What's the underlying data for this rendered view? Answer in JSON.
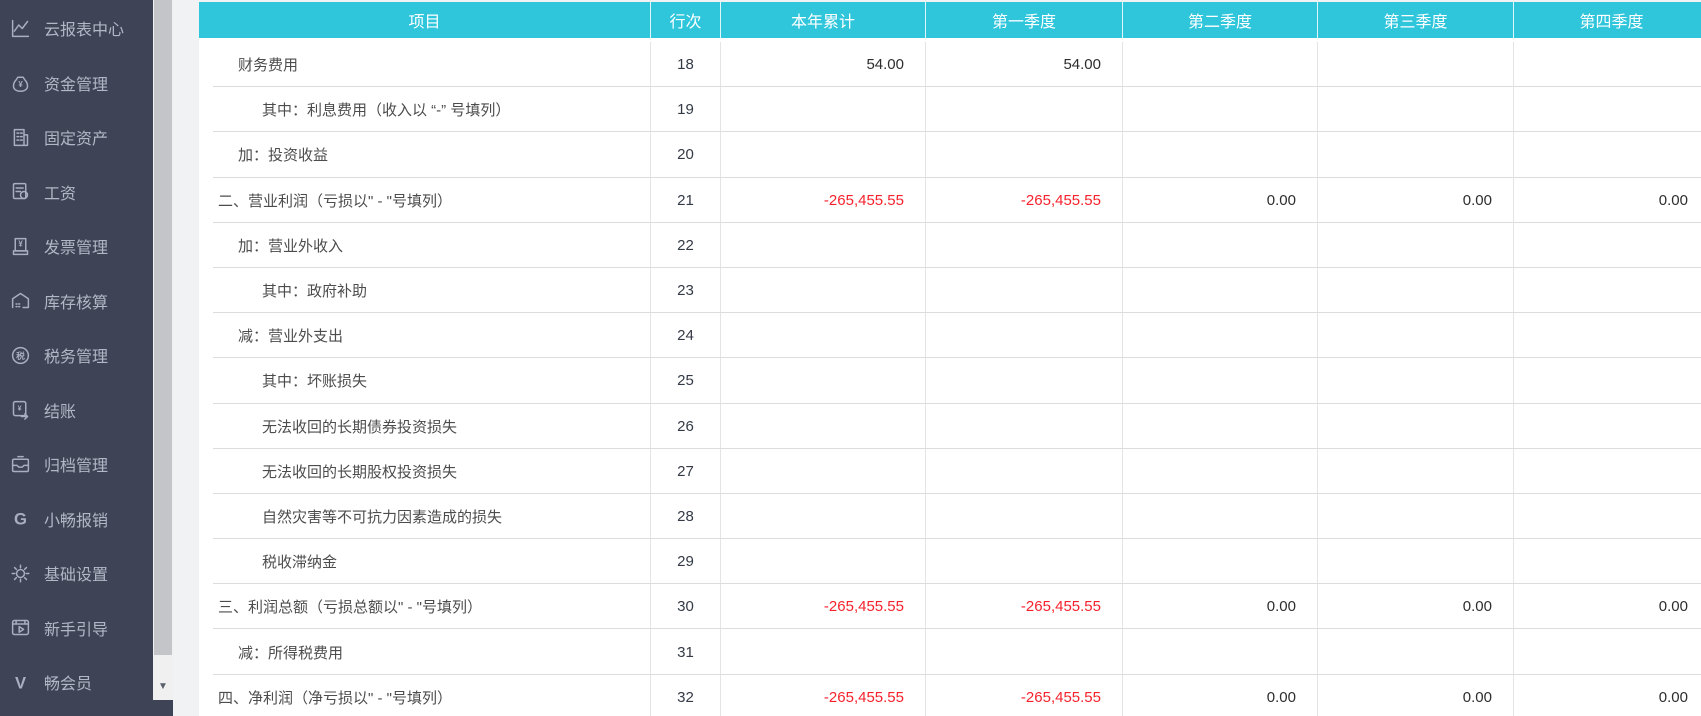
{
  "sidebar": {
    "items": [
      {
        "label": "云报表中心",
        "icon": "chart-line-icon"
      },
      {
        "label": "资金管理",
        "icon": "money-bag-icon"
      },
      {
        "label": "固定资产",
        "icon": "building-icon"
      },
      {
        "label": "工资",
        "icon": "salary-doc-icon"
      },
      {
        "label": "发票管理",
        "icon": "invoice-icon"
      },
      {
        "label": "库存核算",
        "icon": "warehouse-icon"
      },
      {
        "label": "税务管理",
        "icon": "tax-circle-icon"
      },
      {
        "label": "结账",
        "icon": "closing-book-icon"
      },
      {
        "label": "归档管理",
        "icon": "archive-tray-icon"
      },
      {
        "label": "小畅报销",
        "icon": "g-logo-icon"
      },
      {
        "label": "基础设置",
        "icon": "gear-icon"
      },
      {
        "label": "新手引导",
        "icon": "guide-video-icon"
      },
      {
        "label": "畅会员",
        "icon": "member-v-icon"
      }
    ]
  },
  "table": {
    "columns": [
      "项目",
      "行次",
      "本年累计",
      "第一季度",
      "第二季度",
      "第三季度",
      "第四季度"
    ],
    "rows": [
      {
        "item": "财务费用",
        "indent": 1,
        "line": "18",
        "ytd": "54.00",
        "q1": "54.00",
        "q2": "",
        "q3": "",
        "q4": ""
      },
      {
        "item": "其中：利息费用（收入以 “-” 号填列）",
        "indent": 2,
        "line": "19",
        "ytd": "",
        "q1": "",
        "q2": "",
        "q3": "",
        "q4": ""
      },
      {
        "item": "加：投资收益",
        "indent": 1,
        "line": "20",
        "ytd": "",
        "q1": "",
        "q2": "",
        "q3": "",
        "q4": ""
      },
      {
        "item": "二、营业利润（亏损以\" - \"号填列）",
        "indent": 0,
        "line": "21",
        "ytd": "-265,455.55",
        "q1": "-265,455.55",
        "q2": "0.00",
        "q3": "0.00",
        "q4": "0.00"
      },
      {
        "item": "加：营业外收入",
        "indent": 1,
        "line": "22",
        "ytd": "",
        "q1": "",
        "q2": "",
        "q3": "",
        "q4": ""
      },
      {
        "item": "其中：政府补助",
        "indent": 2,
        "line": "23",
        "ytd": "",
        "q1": "",
        "q2": "",
        "q3": "",
        "q4": ""
      },
      {
        "item": "减：营业外支出",
        "indent": 1,
        "line": "24",
        "ytd": "",
        "q1": "",
        "q2": "",
        "q3": "",
        "q4": ""
      },
      {
        "item": "其中：坏账损失",
        "indent": 2,
        "line": "25",
        "ytd": "",
        "q1": "",
        "q2": "",
        "q3": "",
        "q4": ""
      },
      {
        "item": "无法收回的长期债券投资损失",
        "indent": 2,
        "line": "26",
        "ytd": "",
        "q1": "",
        "q2": "",
        "q3": "",
        "q4": ""
      },
      {
        "item": "无法收回的长期股权投资损失",
        "indent": 2,
        "line": "27",
        "ytd": "",
        "q1": "",
        "q2": "",
        "q3": "",
        "q4": ""
      },
      {
        "item": "自然灾害等不可抗力因素造成的损失",
        "indent": 2,
        "line": "28",
        "ytd": "",
        "q1": "",
        "q2": "",
        "q3": "",
        "q4": ""
      },
      {
        "item": "税收滞纳金",
        "indent": 2,
        "line": "29",
        "ytd": "",
        "q1": "",
        "q2": "",
        "q3": "",
        "q4": ""
      },
      {
        "item": "三、利润总额（亏损总额以\" - \"号填列）",
        "indent": 0,
        "line": "30",
        "ytd": "-265,455.55",
        "q1": "-265,455.55",
        "q2": "0.00",
        "q3": "0.00",
        "q4": "0.00"
      },
      {
        "item": "减：所得税费用",
        "indent": 1,
        "line": "31",
        "ytd": "",
        "q1": "",
        "q2": "",
        "q3": "",
        "q4": ""
      },
      {
        "item": "四、净利润（净亏损以\" - \"号填列）",
        "indent": 0,
        "line": "32",
        "ytd": "-265,455.55",
        "q1": "-265,455.55",
        "q2": "0.00",
        "q3": "0.00",
        "q4": "0.00"
      }
    ]
  },
  "scrollbar": {
    "down_arrow": "▼"
  },
  "colors": {
    "header_bg": "#2fc6dc",
    "header_text": "#ffffff",
    "sidebar_bg": "#3e4356",
    "sidebar_text": "#b2b7c6",
    "negative_value": "#f5222d",
    "row_text": "#4c4c4c"
  }
}
